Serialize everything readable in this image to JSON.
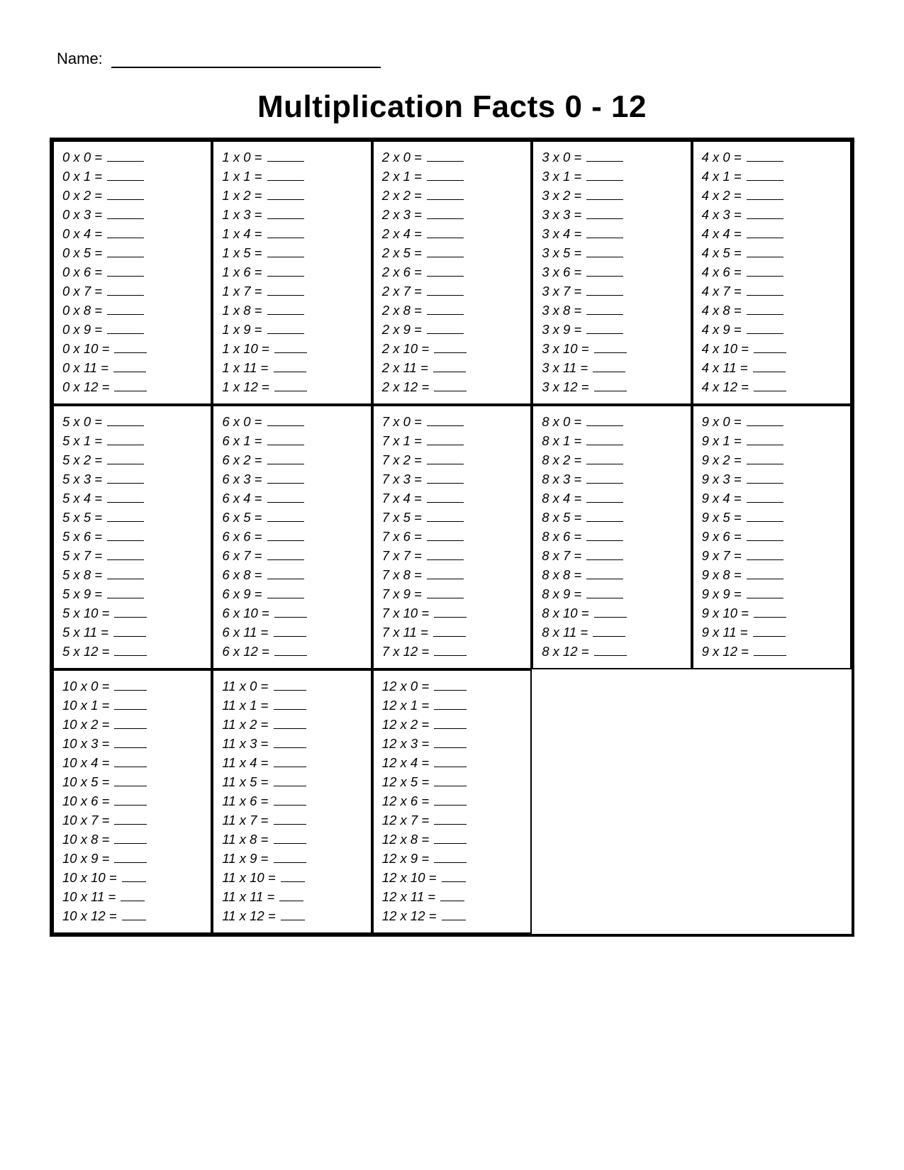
{
  "header": {
    "name_label": "Name:",
    "title": "Multiplication Facts 0 - 12"
  },
  "worksheet": {
    "type": "table",
    "columns_per_row": 5,
    "operator": "x",
    "equals": "=",
    "multiplicands": [
      0,
      1,
      2,
      3,
      4,
      5,
      6,
      7,
      8,
      9,
      10,
      11,
      12
    ],
    "multipliers": [
      0,
      1,
      2,
      3,
      4,
      5,
      6,
      7,
      8,
      9,
      10,
      11,
      12
    ],
    "border_color": "#000000",
    "background_color": "#ffffff",
    "text_color": "#000000",
    "font_style": "italic",
    "font_size_pt": 14,
    "title_fontsize_pt": 33,
    "title_fontweight": 900,
    "name_fontsize_pt": 17,
    "blank_underline": true
  }
}
